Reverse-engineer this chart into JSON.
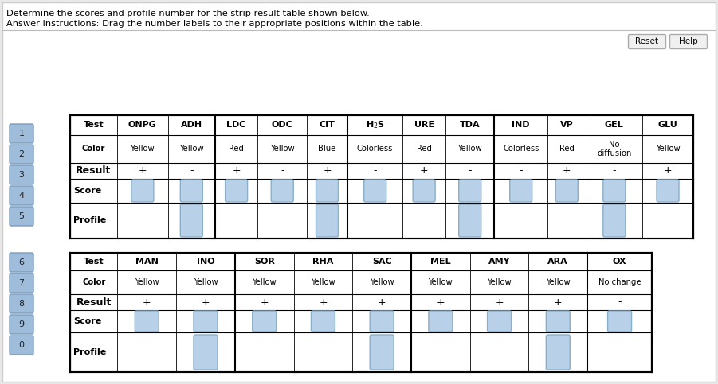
{
  "title_line1": "Determine the scores and profile number for the strip result table shown below.",
  "title_line2": "Answer Instructions: Drag the number labels to their appropriate positions within the table.",
  "table1": {
    "headers": [
      "Test",
      "ONPG",
      "ADH",
      "LDC",
      "ODC",
      "CIT",
      "H₂S",
      "URE",
      "TDA",
      "IND",
      "VP",
      "GEL",
      "GLU"
    ],
    "color_row": [
      "Color",
      "Yellow",
      "Yellow",
      "Red",
      "Yellow",
      "Blue",
      "Colorless",
      "Red",
      "Yellow",
      "Colorless",
      "Red",
      "No\ndiffusion",
      "Yellow"
    ],
    "result_row": [
      "Result",
      "+",
      "-",
      "+",
      "-",
      "+",
      "-",
      "+",
      "-",
      "-",
      "+",
      "-",
      "+"
    ],
    "profile_cols": [
      2,
      5,
      8,
      11
    ]
  },
  "table2": {
    "headers": [
      "Test",
      "MAN",
      "INO",
      "SOR",
      "RHA",
      "SAC",
      "MEL",
      "AMY",
      "ARA",
      "OX"
    ],
    "color_row": [
      "Color",
      "Yellow",
      "Yellow",
      "Yellow",
      "Yellow",
      "Yellow",
      "Yellow",
      "Yellow",
      "Yellow",
      "No change"
    ],
    "result_row": [
      "Result",
      "+",
      "+",
      "+",
      "+",
      "+",
      "+",
      "+",
      "+",
      "-"
    ],
    "profile_cols": [
      2,
      5,
      8
    ]
  },
  "number_labels": [
    "1",
    "2",
    "3",
    "4",
    "5",
    "6",
    "7",
    "8",
    "9",
    "0"
  ],
  "box_color": "#b8d0e8",
  "box_border": "#8aafc8",
  "label_bg": "#a0bcdb",
  "label_border": "#7a9cbf",
  "outer_bg": "#e8e8e8",
  "inner_bg": "#ffffff",
  "panel_bg": "#f5f5f5"
}
